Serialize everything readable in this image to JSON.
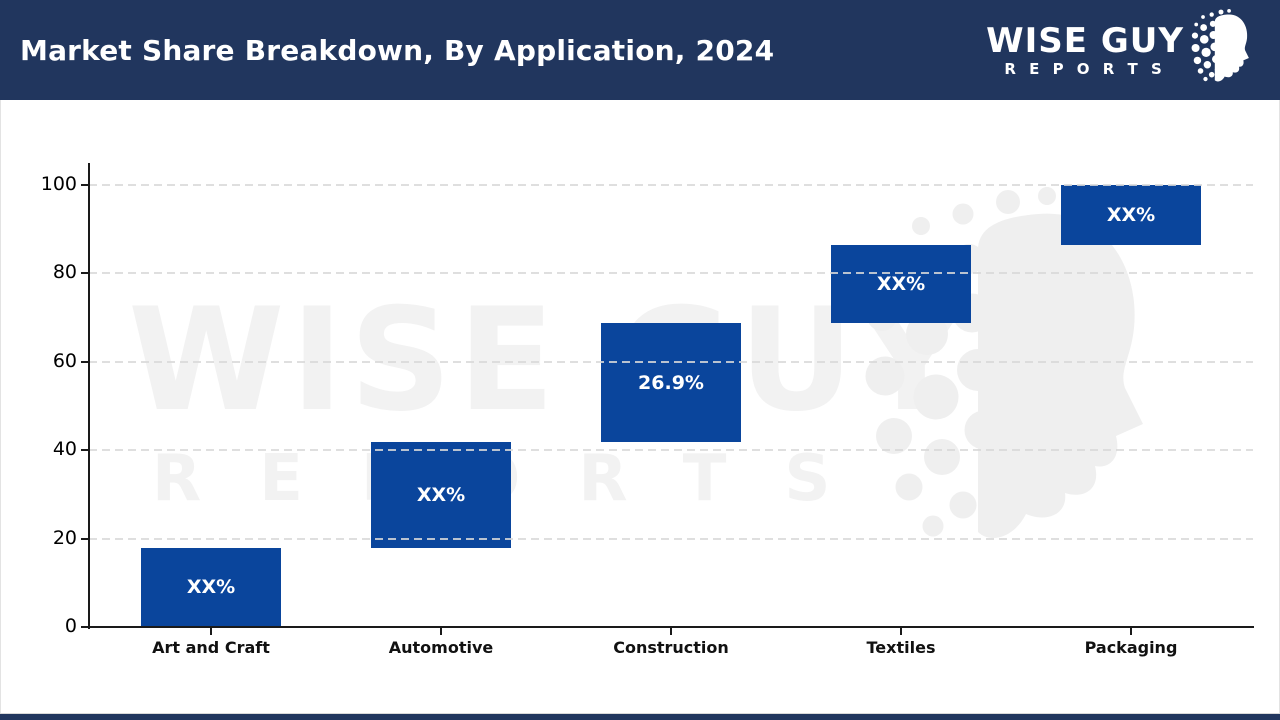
{
  "header": {
    "title": "Market Share Breakdown, By Application, 2024",
    "bg_color": "#21365e",
    "logo": {
      "line1": "WISE GUY",
      "line2": "R E P O R T S"
    }
  },
  "watermark": {
    "line1": "WISE GUY",
    "line2": "REPORTS"
  },
  "chart_data": {
    "type": "bar",
    "subtype": "waterfall",
    "title": "Market Share Breakdown, By Application, 2024",
    "categories": [
      "Art and Craft",
      "Automotive",
      "Construction",
      "Textiles",
      "Packaging"
    ],
    "segments": [
      {
        "category": "Art and Craft",
        "start": 0,
        "end": 17.9,
        "label": "XX%"
      },
      {
        "category": "Automotive",
        "start": 17.9,
        "end": 41.8,
        "label": "XX%"
      },
      {
        "category": "Construction",
        "start": 41.8,
        "end": 68.7,
        "label": "26.9%"
      },
      {
        "category": "Textiles",
        "start": 68.7,
        "end": 86.4,
        "label": "XX%"
      },
      {
        "category": "Packaging",
        "start": 86.4,
        "end": 100,
        "label": "XX%"
      }
    ],
    "segment_heights_pct": [
      17.9,
      23.9,
      26.9,
      17.7,
      13.6
    ],
    "ylim": [
      0,
      100
    ],
    "yticks": [
      0,
      20,
      40,
      60,
      80,
      100
    ],
    "xlabel": "",
    "ylabel": "",
    "grid": "horizontal-dashed",
    "legend": "none",
    "bar_color": "#0a459c",
    "bar_label_color": "#ffffff",
    "grid_color": "#d9d9d9",
    "axis_color": "#1a1a1a"
  }
}
